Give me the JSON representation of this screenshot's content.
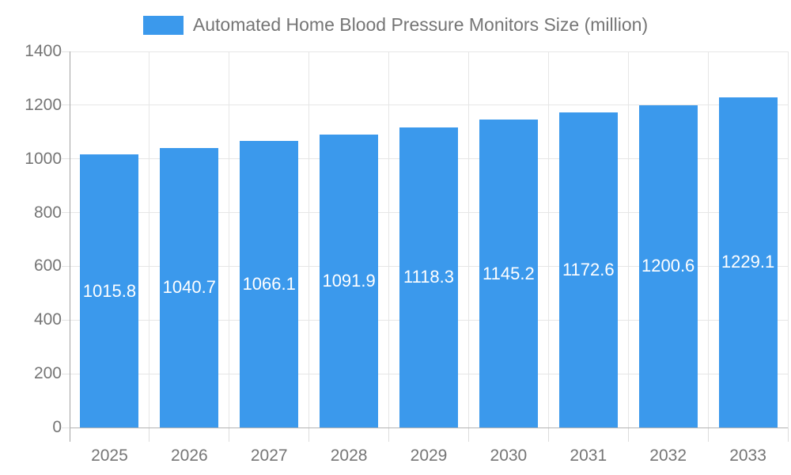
{
  "legend": {
    "label": "Automated Home Blood Pressure Monitors Size (million)"
  },
  "colors": {
    "bar": "#3b99ec",
    "grid": "#e6e6e6",
    "axis": "#a3a3a3",
    "text": "#757575",
    "bar_label": "#ffffff"
  },
  "chart_data": {
    "type": "bar",
    "title": "Automated Home Blood Pressure Monitors Size (million)",
    "categories": [
      "2025",
      "2026",
      "2027",
      "2028",
      "2029",
      "2030",
      "2031",
      "2032",
      "2033"
    ],
    "values": [
      1015.8,
      1040.7,
      1066.1,
      1091.9,
      1118.3,
      1145.2,
      1172.6,
      1200.6,
      1229.1
    ],
    "value_labels": [
      "1015.8",
      "1040.7",
      "1066.1",
      "1091.9",
      "1118.3",
      "1145.2",
      "1172.6",
      "1200.6",
      "1229.1"
    ],
    "yticks": [
      0,
      200,
      400,
      600,
      800,
      1000,
      1200,
      1400
    ],
    "ylim": [
      0,
      1400
    ],
    "xlabel": "",
    "ylabel": "",
    "grid": true,
    "legend_position": "top",
    "value_label_position": "inside-middle"
  }
}
